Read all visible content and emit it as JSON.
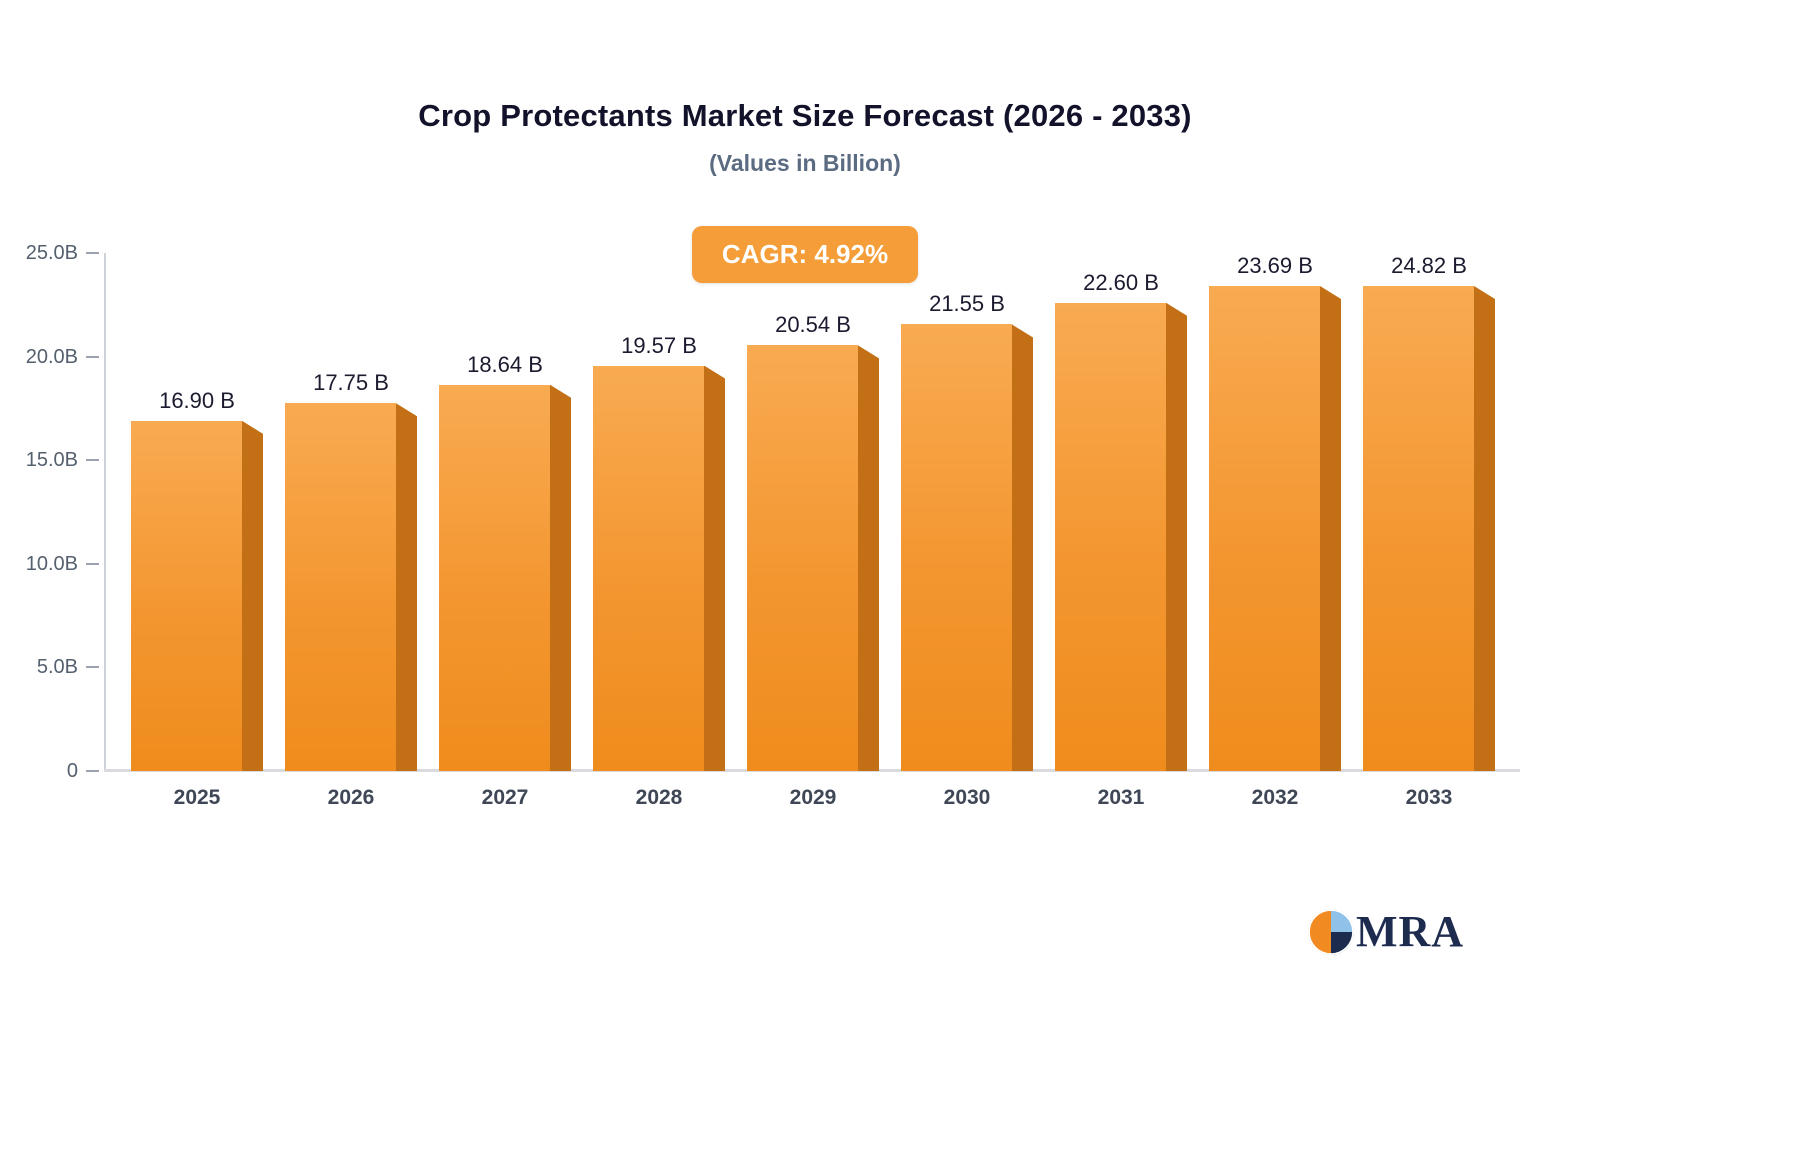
{
  "header": {
    "title": "Crop Protectants Market Size Forecast (2026 - 2033)",
    "subtitle": "(Values in Billion)"
  },
  "badge": {
    "label": "CAGR: 4.92%",
    "bg": "#f59d38"
  },
  "chart_data": {
    "type": "bar",
    "title": "Crop Protectants Market Size Forecast (2026 - 2033)",
    "subtitle": "(Values in Billion)",
    "categories": [
      "2025",
      "2026",
      "2027",
      "2028",
      "2029",
      "2030",
      "2031",
      "2032",
      "2033"
    ],
    "values": [
      16.9,
      17.75,
      18.64,
      19.57,
      20.54,
      21.55,
      22.6,
      23.69,
      24.82
    ],
    "value_labels": [
      "16.90 B",
      "17.75 B",
      "18.64 B",
      "19.57 B",
      "20.54 B",
      "21.55 B",
      "22.60 B",
      "23.69 B",
      "24.82 B"
    ],
    "xlabel": "",
    "ylabel": "",
    "ylim": [
      0,
      25
    ],
    "grid": false,
    "legend": "none",
    "yticks": [
      {
        "label": "25.0B",
        "value": 25
      },
      {
        "label": "20.0B",
        "value": 20
      },
      {
        "label": "15.0B",
        "value": 15
      },
      {
        "label": "10.0B",
        "value": 10
      },
      {
        "label": "5.0B",
        "value": 5
      },
      {
        "label": "0",
        "value": 0
      }
    ],
    "colors": {
      "bar_top": "#f9ab52",
      "bar_bottom": "#ef8c1d",
      "bar_side": "#c26f16",
      "label": "#1b1b2f",
      "axis": "#cdd2d9"
    }
  },
  "logo": {
    "text": "MRA"
  }
}
